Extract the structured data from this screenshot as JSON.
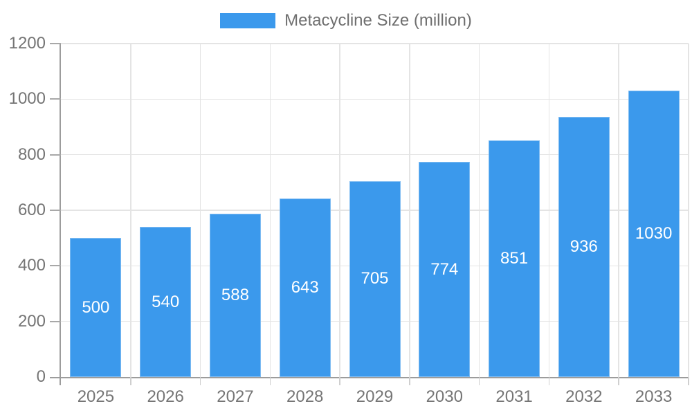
{
  "chart_data": {
    "type": "bar",
    "title": "",
    "xlabel": "",
    "ylabel": "",
    "categories": [
      "2025",
      "2026",
      "2027",
      "2028",
      "2029",
      "2030",
      "2031",
      "2032",
      "2033"
    ],
    "series": [
      {
        "name": "Metacycline Size (million)",
        "values": [
          500,
          540,
          588,
          643,
          705,
          774,
          851,
          936,
          1030
        ]
      }
    ],
    "ylim": [
      0,
      1200
    ],
    "yticks": [
      0,
      200,
      400,
      600,
      800,
      1000,
      1200
    ],
    "grid": true,
    "legend_position": "top",
    "value_labels_position": "inside-center"
  },
  "legend": {
    "label": "Metacycline Size (million)"
  },
  "colors": {
    "bar": "#3B99EC",
    "bar_value_text": "#FFFFFF",
    "axis_line": "#9C9C9C",
    "grid_line": "#E4E4E4",
    "x_tick": "#CFCFCF",
    "y_tick": "#A8A8A8",
    "axis_text": "#757575",
    "legend_text": "#6F6F6F",
    "background": "#FFFFFF"
  }
}
